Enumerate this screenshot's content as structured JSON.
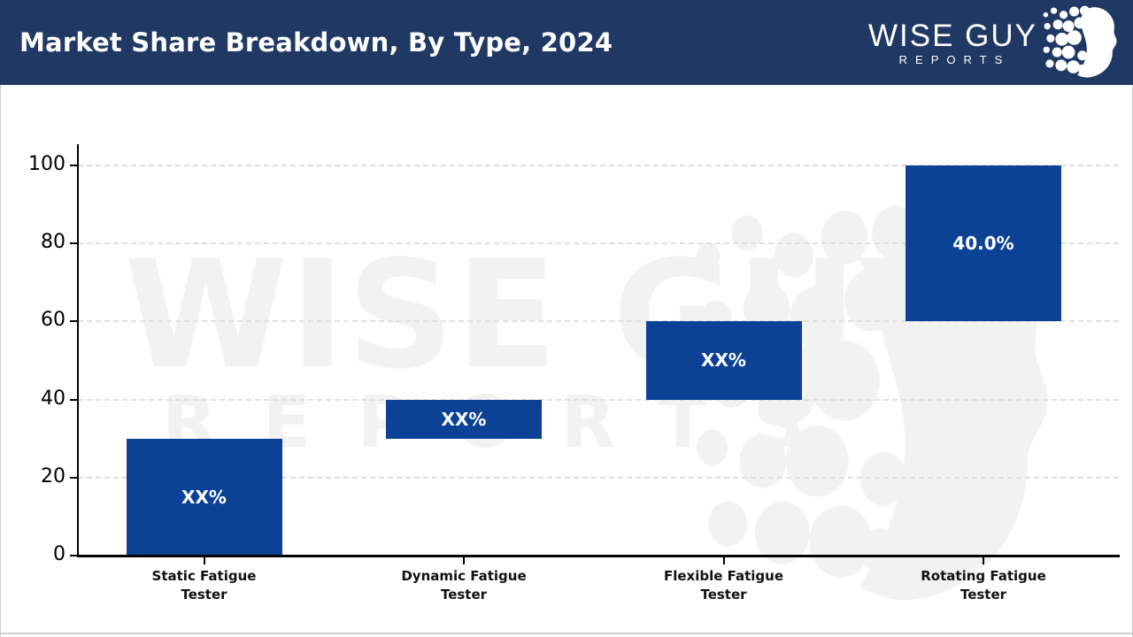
{
  "header": {
    "title": "Market Share Breakdown, By Type, 2024",
    "bg_color": "#203864"
  },
  "logo": {
    "name_top": "WISE GUY",
    "name_bottom": "REPORTS",
    "icon": "dotted-face-profile"
  },
  "watermark": {
    "line1": "WISE GUY",
    "line2": "REPORTS"
  },
  "chart_data": {
    "type": "bar",
    "subtype": "waterfall",
    "title": "Market Share Breakdown, By Type, 2024",
    "categories": [
      "Static Fatigue\nTester",
      "Dynamic Fatigue\nTester",
      "Flexible Fatigue\nTester",
      "Rotating Fatigue\nTester"
    ],
    "segments": [
      {
        "category": "Static Fatigue Tester",
        "start": 0,
        "end": 30,
        "value": 30,
        "label": "XX%"
      },
      {
        "category": "Dynamic Fatigue Tester",
        "start": 30,
        "end": 40,
        "value": 10,
        "label": "XX%"
      },
      {
        "category": "Flexible Fatigue Tester",
        "start": 40,
        "end": 60,
        "value": 20,
        "label": "XX%"
      },
      {
        "category": "Rotating Fatigue Tester",
        "start": 60,
        "end": 100,
        "value": 40,
        "label": "40.0%"
      }
    ],
    "yticks": [
      0,
      20,
      40,
      60,
      80,
      100
    ],
    "ylim": [
      0,
      105
    ],
    "xlabel": "",
    "ylabel": "",
    "grid": "horizontal-dashed",
    "legend": "none",
    "bar_color": "#0C4296",
    "bar_label_color": "#FFFFFF",
    "axis_color": "#000000",
    "gridline_color": "#E0E0E0"
  }
}
